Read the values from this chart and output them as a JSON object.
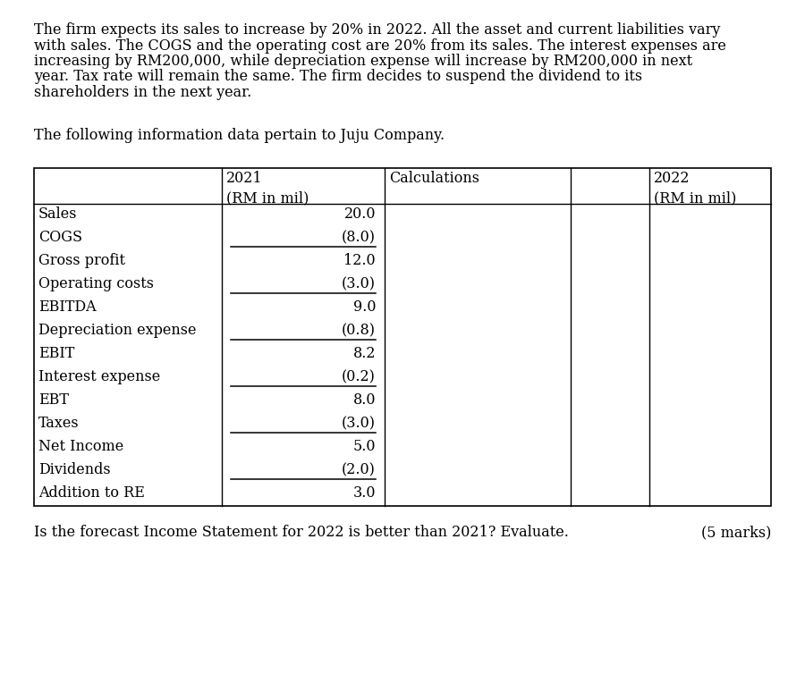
{
  "para_lines": [
    "The firm expects its sales to increase by 20% in 2022. All the asset and current liabilities vary",
    "with sales. The COGS and the operating cost are 20% from its sales. The interest expenses are",
    "increasing by RM200,000, while depreciation expense will increase by RM200,000 in next",
    "year. Tax rate will remain the same. The firm decides to suspend the dividend to its",
    "shareholders in the next year."
  ],
  "subtitle": "The following information data pertain to Juju Company.",
  "footer": "Is the forecast Income Statement for 2022 is better than 2021? Evaluate.",
  "footer_marks": "(5 marks)",
  "header_col1": "2021\n(RM in mil)",
  "header_col2": "Calculations",
  "header_col4": "2022\n(RM in mil)",
  "rows": [
    [
      "Sales",
      "20.0",
      false
    ],
    [
      "COGS",
      "(8.0)",
      true
    ],
    [
      "Gross profit",
      "12.0",
      false
    ],
    [
      "Operating costs",
      "(3.0)",
      true
    ],
    [
      "EBITDA",
      "9.0",
      false
    ],
    [
      "Depreciation expense",
      "(0.8)",
      true
    ],
    [
      "EBIT",
      "8.2",
      false
    ],
    [
      "Interest expense",
      "(0.2)",
      true
    ],
    [
      "EBT",
      "8.0",
      false
    ],
    [
      "Taxes",
      "(3.0)",
      true
    ],
    [
      "Net Income",
      "5.0",
      false
    ],
    [
      "Dividends",
      "(2.0)",
      true
    ],
    [
      "Addition to RE",
      "3.0",
      false
    ]
  ],
  "bg_color": "#ffffff",
  "text_color": "#000000",
  "fs": 11.5
}
